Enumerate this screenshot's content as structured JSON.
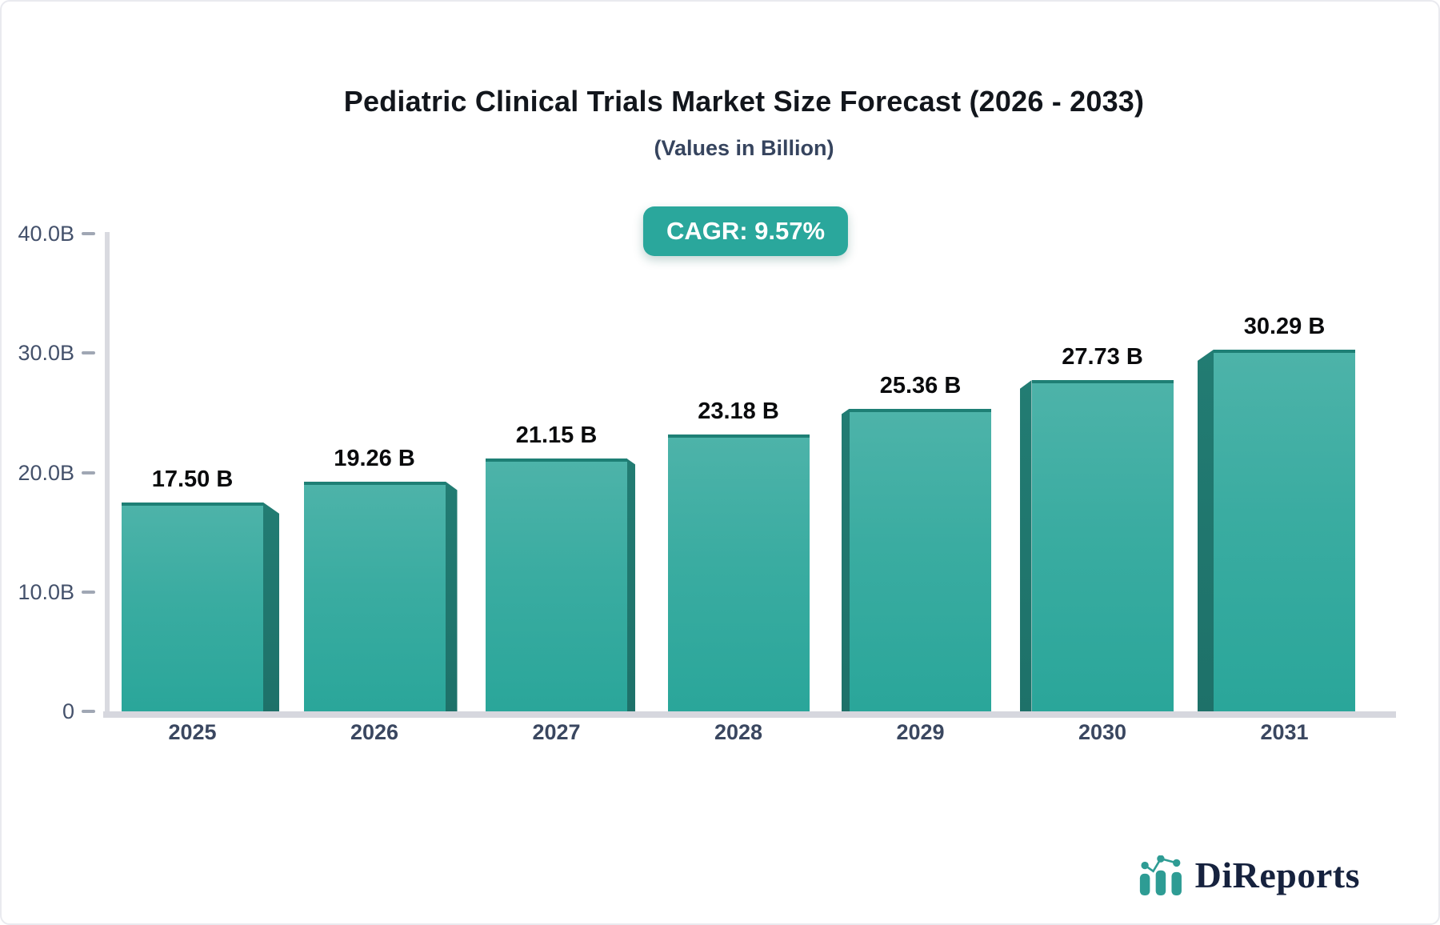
{
  "header": {
    "title": "Pediatric Clinical Trials Market Size Forecast (2026 - 2033)",
    "subtitle": "(Values in Billion)",
    "cagr_label": "CAGR: 9.57%"
  },
  "chart_data": {
    "type": "bar",
    "style": "3d-perspective-center-vanishing-point",
    "categories": [
      "2025",
      "2026",
      "2027",
      "2028",
      "2029",
      "2030",
      "2031"
    ],
    "values": [
      17.5,
      19.26,
      21.15,
      23.18,
      25.36,
      27.73,
      30.29
    ],
    "value_labels": [
      "17.50 B",
      "19.26 B",
      "21.15 B",
      "23.18 B",
      "25.36 B",
      "27.73 B",
      "30.29 B"
    ],
    "title": "Pediatric Clinical Trials Market Size Forecast (2026 - 2033)",
    "subtitle": "(Values in Billion)",
    "xlabel": "",
    "ylabel": "",
    "ylim": [
      0,
      40
    ],
    "yticks": [
      {
        "value": 0,
        "label": "0"
      },
      {
        "value": 10,
        "label": "10.0B"
      },
      {
        "value": 20,
        "label": "20.0B"
      },
      {
        "value": 30,
        "label": "30.0B"
      },
      {
        "value": 40,
        "label": "40.0B"
      }
    ],
    "grid": false,
    "legend": false,
    "colors": {
      "bar_face_top": "#4db3a9",
      "bar_face_bottom": "#2aa69a",
      "bar_side": "#1f776e",
      "bar_top_edge": "#1e7f75",
      "axis_line": "#d9dae0",
      "badge_background": "#2aa79c",
      "badge_text": "#ffffff"
    }
  },
  "branding": {
    "logo_text": "DiReports",
    "logo_icon": "mini-bar-line-chart-icon",
    "logo_text_color": "#16223e",
    "logo_icon_color": "#2e9c94"
  }
}
